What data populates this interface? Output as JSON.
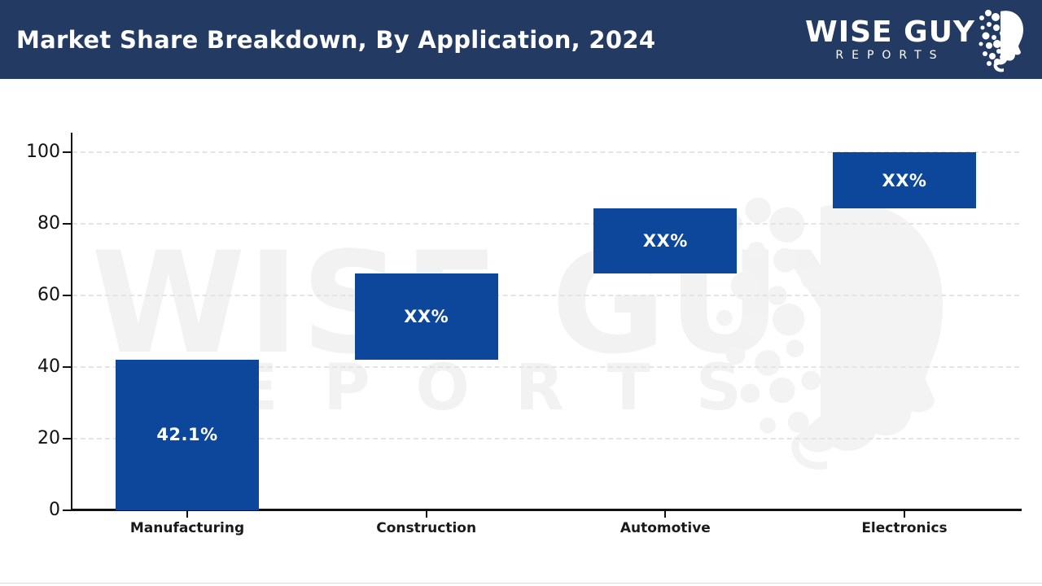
{
  "header": {
    "title": "Market Share Breakdown, By Application, 2024",
    "background_color": "#233a63",
    "logo": {
      "line1": "WISE GUY",
      "line2": "REPORTS"
    }
  },
  "watermark": {
    "line1": "WISE GUY",
    "line2": "REPORTS"
  },
  "chart_data": {
    "type": "bar",
    "subtype": "waterfall",
    "title": "Market Share Breakdown, By Application, 2024",
    "xlabel": "",
    "ylabel": "",
    "categories": [
      "Manufacturing",
      "Construction",
      "Automotive",
      "Electronics"
    ],
    "segments": [
      {
        "category": "Manufacturing",
        "start": 0,
        "end": 42.1,
        "label": "42.1%"
      },
      {
        "category": "Construction",
        "start": 42.1,
        "end": 66.2,
        "label": "XX%"
      },
      {
        "category": "Automotive",
        "start": 66.2,
        "end": 84.3,
        "label": "XX%"
      },
      {
        "category": "Electronics",
        "start": 84.3,
        "end": 100,
        "label": "XX%"
      }
    ],
    "yticks": [
      0,
      20,
      40,
      60,
      80,
      100
    ],
    "ylim": [
      0,
      105
    ],
    "grid": "horizontal-dashed",
    "legend": "none",
    "bar_color": "#0c479c",
    "bar_label_color": "#ffffff"
  }
}
